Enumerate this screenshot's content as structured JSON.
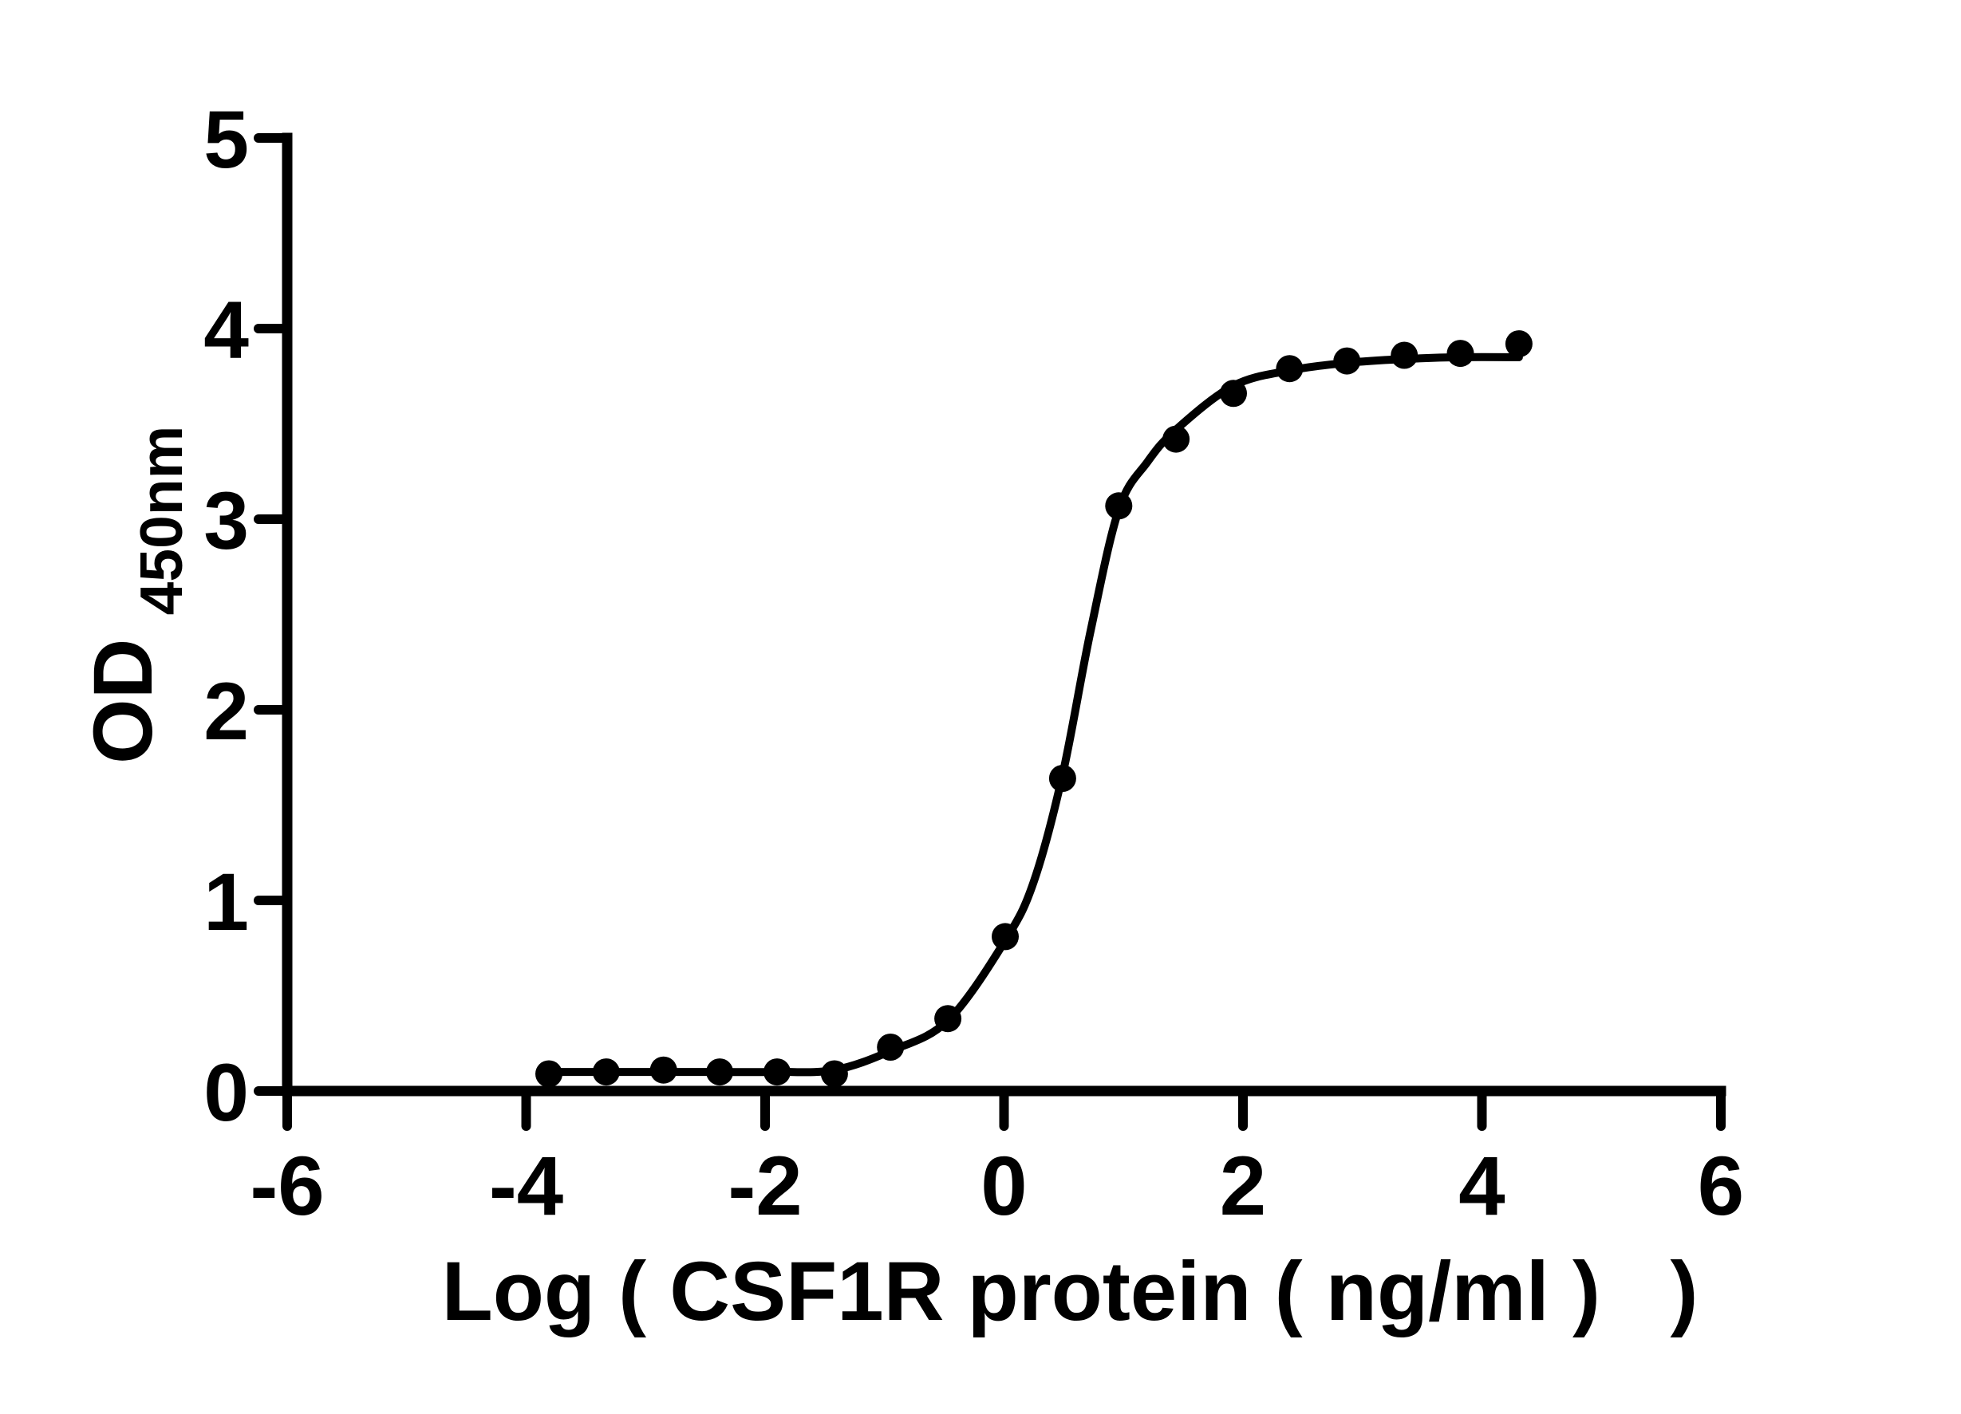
{
  "figure": {
    "background_color": "#ffffff",
    "ink_color": "#000000"
  },
  "chart_data": {
    "type": "scatter",
    "title": "",
    "xlabel": "Log ( CSF1R protein ( ng/ml )   )",
    "ylabel_main": "OD",
    "ylabel_sub": "450nm",
    "xlim": [
      -6,
      6
    ],
    "ylim": [
      0,
      5
    ],
    "x_ticks": [
      -6,
      -4,
      -2,
      0,
      2,
      4,
      6
    ],
    "y_ticks": [
      0,
      1,
      2,
      3,
      4,
      5
    ],
    "grid": false,
    "legend": false,
    "marker": "filled-circle",
    "marker_color": "#000000",
    "curve_color": "#000000",
    "points": [
      [
        -3.81,
        0.09
      ],
      [
        -3.33,
        0.1
      ],
      [
        -2.85,
        0.11
      ],
      [
        -2.38,
        0.1
      ],
      [
        -1.9,
        0.1
      ],
      [
        -1.42,
        0.09
      ],
      [
        -0.95,
        0.23
      ],
      [
        -0.47,
        0.38
      ],
      [
        0.01,
        0.81
      ],
      [
        0.49,
        1.64
      ],
      [
        0.96,
        3.07
      ],
      [
        1.44,
        3.42
      ],
      [
        1.92,
        3.66
      ],
      [
        2.39,
        3.79
      ],
      [
        2.87,
        3.83
      ],
      [
        3.35,
        3.86
      ],
      [
        3.82,
        3.87
      ],
      [
        4.31,
        3.92
      ]
    ],
    "fit_curve": [
      [
        -3.81,
        0.1
      ],
      [
        -3.33,
        0.1
      ],
      [
        -2.85,
        0.1
      ],
      [
        -2.38,
        0.1
      ],
      [
        -1.9,
        0.1
      ],
      [
        -1.42,
        0.11
      ],
      [
        -0.95,
        0.21
      ],
      [
        -0.47,
        0.37
      ],
      [
        0.01,
        0.79
      ],
      [
        0.25,
        1.1
      ],
      [
        0.49,
        1.66
      ],
      [
        0.72,
        2.4
      ],
      [
        0.96,
        3.05
      ],
      [
        1.2,
        3.3
      ],
      [
        1.44,
        3.47
      ],
      [
        1.92,
        3.7
      ],
      [
        2.39,
        3.78
      ],
      [
        2.87,
        3.82
      ],
      [
        3.35,
        3.84
      ],
      [
        3.82,
        3.85
      ],
      [
        4.31,
        3.85
      ]
    ]
  }
}
